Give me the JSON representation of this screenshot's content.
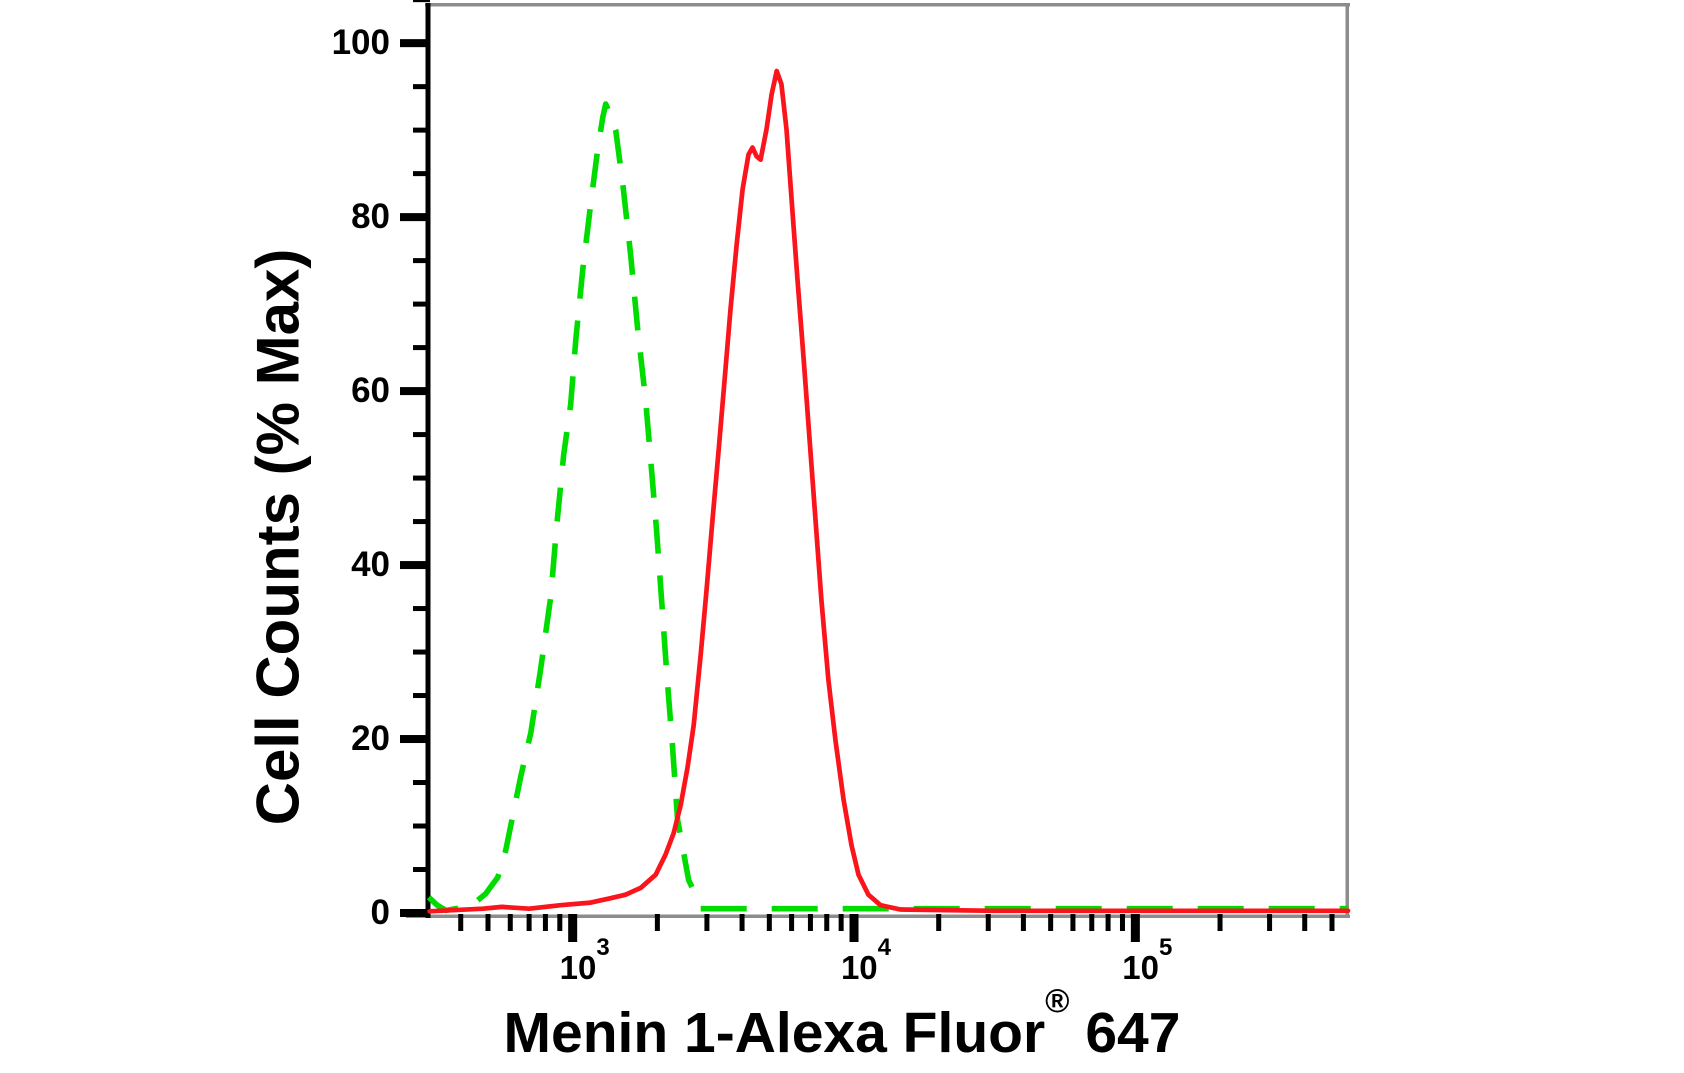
{
  "figure": {
    "background": "#ffffff",
    "text_color": "#000000"
  },
  "chart_data": {
    "type": "line",
    "subtype": "flow-cytometry-overlay-histogram",
    "title": "",
    "xlabel": "Menin 1-Alexa Fluor® 647",
    "xlabel_parts": {
      "main": "Menin 1-Alexa Fluor",
      "sup": "®",
      "suffix": " 647"
    },
    "ylabel": "Cell Counts (% Max)",
    "x_scale": "log",
    "x_range": [
      306,
      570000
    ],
    "ylim": [
      0,
      104.5
    ],
    "grid": false,
    "legend": null,
    "colors": {
      "red_curve": "#fa141b",
      "green_curve": "#00dc00",
      "axis": "#000000",
      "frame": "#8c8c8c"
    },
    "y_ticks": {
      "major": [
        {
          "value": 0,
          "label": "0"
        },
        {
          "value": 20,
          "label": "20"
        },
        {
          "value": 40,
          "label": "40"
        },
        {
          "value": 60,
          "label": "60"
        },
        {
          "value": 80,
          "label": "80"
        },
        {
          "value": 100,
          "label": "100"
        }
      ],
      "minor_values": [
        5,
        10,
        15,
        25,
        30,
        35,
        45,
        50,
        55,
        65,
        70,
        75,
        85,
        90,
        95,
        105
      ]
    },
    "x_ticks": {
      "major": [
        {
          "value": 1000,
          "mantissa": "10",
          "exponent": "3"
        },
        {
          "value": 10000,
          "mantissa": "10",
          "exponent": "4"
        },
        {
          "value": 100000,
          "mantissa": "10",
          "exponent": "5"
        }
      ],
      "minor_values": [
        400,
        500,
        600,
        700,
        800,
        900,
        2000,
        3000,
        4000,
        5000,
        6000,
        7000,
        8000,
        9000,
        20000,
        30000,
        40000,
        50000,
        60000,
        70000,
        80000,
        90000,
        200000,
        300000,
        400000,
        500000
      ]
    },
    "series": [
      {
        "name": "green_dashed_curve",
        "style": "dashed",
        "color": "#00dc00",
        "stroke_width": 5.6,
        "dash": [
          34,
          22
        ],
        "peak": {
          "x": 1310,
          "y_pct": 93.0
        },
        "points": [
          [
            308,
            1.8
          ],
          [
            330,
            0.9
          ],
          [
            355,
            0.3
          ],
          [
            434,
            0.8
          ],
          [
            490,
            2.2
          ],
          [
            542,
            4.1
          ],
          [
            578,
            7.2
          ],
          [
            653,
            15.6
          ],
          [
            710,
            20.7
          ],
          [
            769,
            28.0
          ],
          [
            836,
            36.4
          ],
          [
            877,
            44.4
          ],
          [
            929,
            52.7
          ],
          [
            984,
            58.5
          ],
          [
            1026,
            65.9
          ],
          [
            1086,
            74.0
          ],
          [
            1159,
            81.5
          ],
          [
            1227,
            87.8
          ],
          [
            1280,
            91.5
          ],
          [
            1310,
            93.0
          ],
          [
            1350,
            92.0
          ],
          [
            1422,
            90.0
          ],
          [
            1507,
            83.8
          ],
          [
            1607,
            75.7
          ],
          [
            1702,
            67.1
          ],
          [
            1816,
            59.0
          ],
          [
            1893,
            52.1
          ],
          [
            1986,
            44.1
          ],
          [
            2070,
            36.0
          ],
          [
            2158,
            27.6
          ],
          [
            2265,
            19.0
          ],
          [
            2360,
            10.7
          ],
          [
            2582,
            3.8
          ],
          [
            2851,
            0.8
          ]
        ],
        "baseline_dash": [
          46,
          25
        ],
        "baseline_points": [
          [
            2851,
            0.5
          ],
          [
            3500,
            0.5
          ],
          [
            10000,
            0.5
          ],
          [
            50000,
            0.5
          ],
          [
            200000,
            0.5
          ],
          [
            570000,
            0.5
          ]
        ]
      },
      {
        "name": "red_solid_curve",
        "style": "solid",
        "color": "#fa141b",
        "stroke_width": 4.7,
        "peak": {
          "x": 5309,
          "y_pct": 96.8
        },
        "shoulder": {
          "x": 4355,
          "y_pct": 88.0
        },
        "points": [
          [
            310,
            0.2
          ],
          [
            480,
            0.5
          ],
          [
            560,
            0.7
          ],
          [
            700,
            0.5
          ],
          [
            906,
            0.9
          ],
          [
            1159,
            1.2
          ],
          [
            1365,
            1.7
          ],
          [
            1542,
            2.1
          ],
          [
            1746,
            2.9
          ],
          [
            1972,
            4.4
          ],
          [
            2138,
            6.7
          ],
          [
            2286,
            9.2
          ],
          [
            2421,
            12.4
          ],
          [
            2559,
            16.7
          ],
          [
            2692,
            21.6
          ],
          [
            2851,
            29.7
          ],
          [
            2992,
            37.2
          ],
          [
            3141,
            45.2
          ],
          [
            3304,
            53.3
          ],
          [
            3467,
            61.3
          ],
          [
            3639,
            69.4
          ],
          [
            3828,
            76.9
          ],
          [
            4018,
            83.2
          ],
          [
            4217,
            87.2
          ],
          [
            4355,
            88.0
          ],
          [
            4500,
            87.0
          ],
          [
            4656,
            86.6
          ],
          [
            4887,
            90.1
          ],
          [
            5093,
            94.1
          ],
          [
            5309,
            96.8
          ],
          [
            5521,
            95.3
          ],
          [
            5754,
            90.1
          ],
          [
            5998,
            82.0
          ],
          [
            6295,
            72.8
          ],
          [
            6622,
            63.6
          ],
          [
            6950,
            54.4
          ],
          [
            7295,
            45.2
          ],
          [
            7656,
            36.0
          ],
          [
            8110,
            26.8
          ],
          [
            8590,
            19.9
          ],
          [
            9183,
            13.0
          ],
          [
            9795,
            7.8
          ],
          [
            10375,
            4.4
          ],
          [
            11246,
            2.1
          ],
          [
            12417,
            0.9
          ],
          [
            14622,
            0.4
          ],
          [
            31623,
            0.25
          ],
          [
            100000,
            0.25
          ],
          [
            316228,
            0.25
          ],
          [
            570000,
            0.25
          ]
        ]
      }
    ]
  }
}
